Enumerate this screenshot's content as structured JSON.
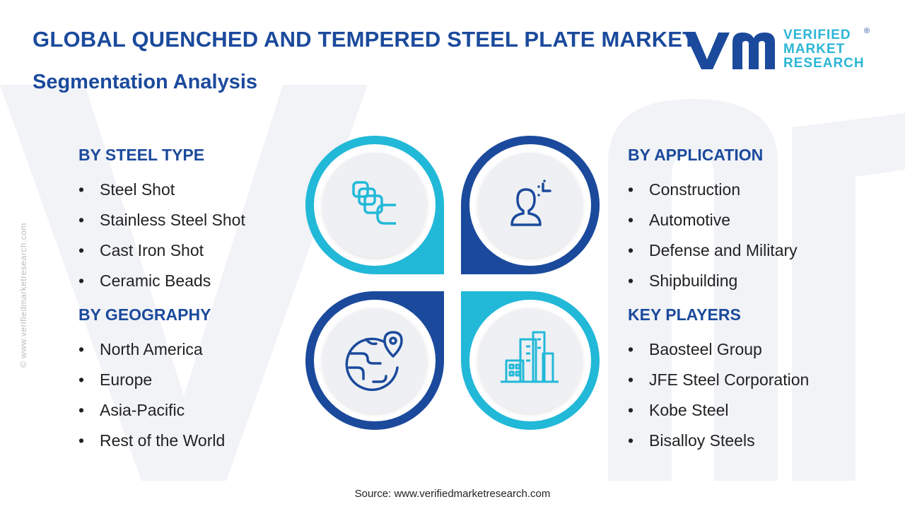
{
  "header": {
    "title": "GLOBAL QUENCHED AND TEMPERED STEEL PLATE MARKET",
    "subtitle": "Segmentation Analysis"
  },
  "logo": {
    "line1": "VERIFIED",
    "line2": "MARKET",
    "line3": "RESEARCH",
    "registered": "®"
  },
  "side_watermark": "© www.verifiedmarketresearch.com",
  "segments": {
    "steel_type": {
      "heading": "BY STEEL TYPE",
      "items": [
        "Steel Shot",
        "Stainless Steel Shot",
        "Cast Iron Shot",
        "Ceramic Beads"
      ]
    },
    "geography": {
      "heading": "BY GEOGRAPHY",
      "items": [
        "North America",
        "Europe",
        "Asia-Pacific",
        "Rest of the World"
      ]
    },
    "application": {
      "heading": "BY APPLICATION",
      "items": [
        "Construction",
        "Automotive",
        "Defense and Military",
        "Shipbuilding"
      ]
    },
    "key_players": {
      "heading": "KEY PLAYERS",
      "items": [
        "Baosteel Group",
        "JFE Steel Corporation",
        "Kobe Steel",
        "Bisalloy Steels"
      ]
    }
  },
  "bullet_char": "•",
  "diagram_icons": [
    "cubes-icon",
    "user-focus-icon",
    "globe-location-icon",
    "city-buildings-icon"
  ],
  "colors": {
    "navy": "#1b4a9c",
    "cyan": "#2bb6d6",
    "light_cyan": "#1fb7d8"
  },
  "source": "Source: www.verifiedmarketresearch.com"
}
